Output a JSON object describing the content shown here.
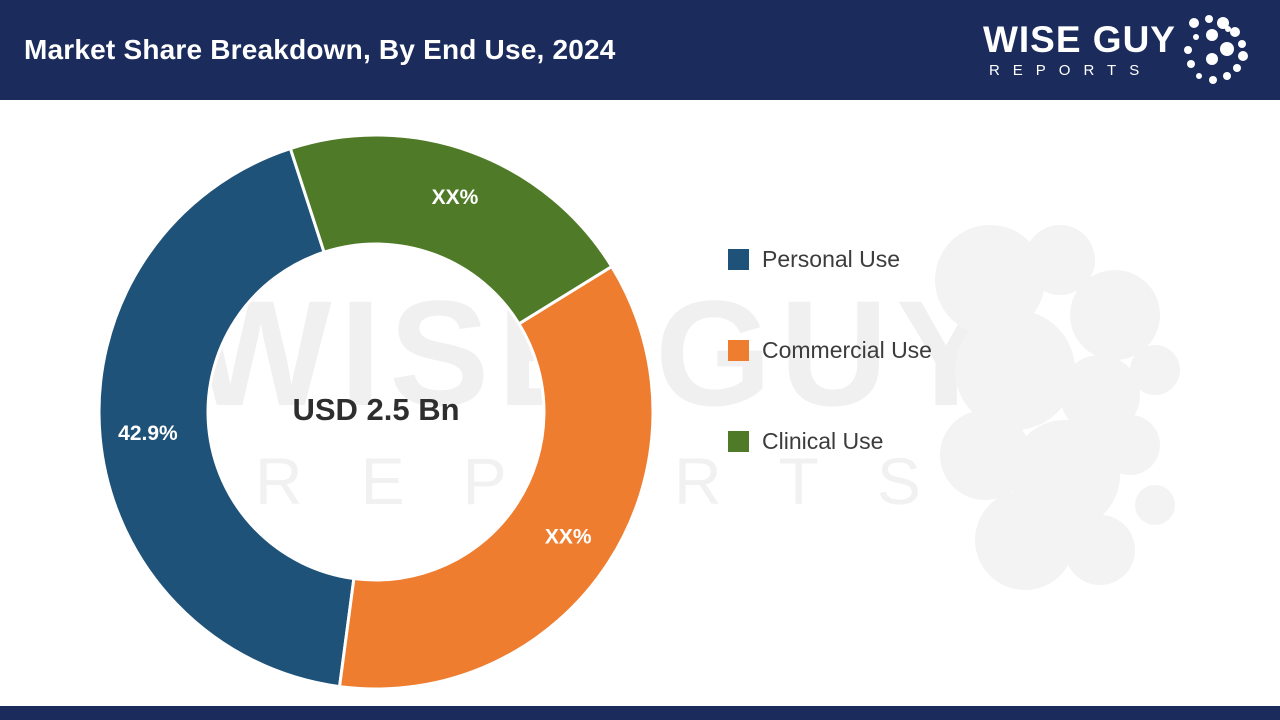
{
  "header": {
    "title": "Market Share Breakdown, By End Use, 2024",
    "background_color": "#1a2b5c",
    "logo": {
      "line1": "WISE GUY",
      "line2": "REPORTS"
    }
  },
  "watermark": {
    "line1": "WISE GUY",
    "line2": "REPORTS"
  },
  "chart_data": {
    "type": "donut",
    "title": "Market Share Breakdown, By End Use, 2024",
    "center_label": "USD 2.5 Bn",
    "legend_position": "right",
    "start_angle": -18,
    "direction": "counterclockwise",
    "segments": [
      {
        "id": "personal-use",
        "name": "Personal Use",
        "value": 42.9,
        "display_label": "42.9%",
        "color": "#1f5278",
        "value_estimated": false
      },
      {
        "id": "commercial-use",
        "name": "Commercial Use",
        "value": 35.9,
        "display_label": "XX%",
        "color": "#ee7d30",
        "value_estimated": true
      },
      {
        "id": "clinical-use",
        "name": "Clinical Use",
        "value": 21.2,
        "display_label": "XX%",
        "color": "#4f7b28",
        "value_estimated": true
      }
    ]
  },
  "footer": {
    "background_color": "#1a2b5c"
  }
}
